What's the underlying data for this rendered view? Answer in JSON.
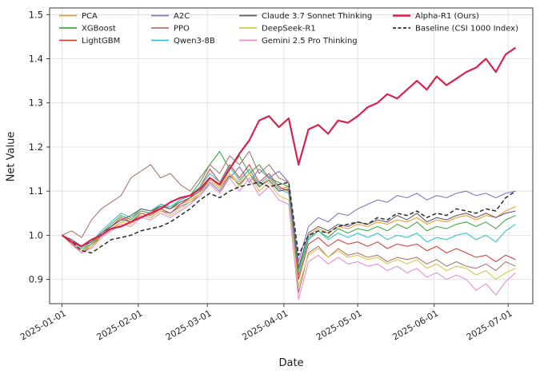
{
  "chart_data": {
    "type": "line",
    "title": "",
    "xlabel": "Date",
    "ylabel": "Net Value",
    "grid": true,
    "legend_position": "upper left",
    "xlim": [
      -5,
      191
    ],
    "ylim": [
      0.845,
      1.515
    ],
    "y_ticks": [
      0.9,
      1.0,
      1.1,
      1.2,
      1.3,
      1.4,
      1.5
    ],
    "x_tick_days": [
      0,
      31,
      59,
      90,
      120,
      151,
      181
    ],
    "x_tick_labels": [
      "2025-01-01",
      "2025-02-01",
      "2025-03-01",
      "2025-04-01",
      "2025-05-01",
      "2025-06-01",
      "2025-07-01"
    ],
    "x_days": [
      0,
      4,
      8,
      12,
      16,
      20,
      24,
      28,
      32,
      36,
      40,
      44,
      48,
      52,
      56,
      60,
      64,
      68,
      72,
      76,
      80,
      84,
      88,
      92,
      96,
      100,
      104,
      108,
      112,
      116,
      120,
      124,
      128,
      132,
      136,
      140,
      144,
      148,
      152,
      156,
      160,
      164,
      168,
      172,
      176,
      180,
      184
    ],
    "series": [
      {
        "name": "PCA",
        "color": "#f2992e",
        "width": 1.1,
        "dash": null,
        "values": [
          1.0,
          0.99,
          0.97,
          0.98,
          1.0,
          1.015,
          1.03,
          1.04,
          1.055,
          1.05,
          1.065,
          1.06,
          1.07,
          1.08,
          1.095,
          1.13,
          1.11,
          1.14,
          1.12,
          1.15,
          1.11,
          1.13,
          1.105,
          1.11,
          0.93,
          1.0,
          1.015,
          1.005,
          1.02,
          1.015,
          1.025,
          1.02,
          1.03,
          1.025,
          1.035,
          1.03,
          1.04,
          1.025,
          1.035,
          1.03,
          1.04,
          1.045,
          1.035,
          1.045,
          1.04,
          1.055,
          1.065
        ]
      },
      {
        "name": "XGBoost",
        "color": "#46a44a",
        "width": 1.1,
        "dash": null,
        "values": [
          1.0,
          0.985,
          0.965,
          0.98,
          1.005,
          1.025,
          1.045,
          1.035,
          1.055,
          1.05,
          1.07,
          1.06,
          1.08,
          1.09,
          1.12,
          1.16,
          1.19,
          1.15,
          1.18,
          1.14,
          1.16,
          1.13,
          1.12,
          1.11,
          0.91,
          0.99,
          1.01,
          0.995,
          1.015,
          1.005,
          1.015,
          1.01,
          1.02,
          1.01,
          1.025,
          1.015,
          1.03,
          1.01,
          1.02,
          1.015,
          1.025,
          1.03,
          1.02,
          1.03,
          1.015,
          1.035,
          1.045
        ]
      },
      {
        "name": "LightGBM",
        "color": "#d0453e",
        "width": 1.1,
        "dash": null,
        "values": [
          1.0,
          0.98,
          0.96,
          0.975,
          1.0,
          1.02,
          1.04,
          1.03,
          1.05,
          1.045,
          1.06,
          1.05,
          1.07,
          1.085,
          1.11,
          1.15,
          1.12,
          1.16,
          1.13,
          1.16,
          1.12,
          1.14,
          1.11,
          1.1,
          0.9,
          0.98,
          0.995,
          0.975,
          0.99,
          0.98,
          0.985,
          0.975,
          0.985,
          0.97,
          0.98,
          0.975,
          0.98,
          0.965,
          0.975,
          0.96,
          0.97,
          0.96,
          0.95,
          0.955,
          0.94,
          0.955,
          0.945
        ]
      },
      {
        "name": "A2C",
        "color": "#8376c6",
        "width": 1.1,
        "dash": null,
        "values": [
          1.0,
          0.99,
          0.975,
          0.985,
          1.005,
          1.02,
          1.035,
          1.03,
          1.045,
          1.04,
          1.055,
          1.05,
          1.065,
          1.075,
          1.09,
          1.12,
          1.1,
          1.13,
          1.155,
          1.12,
          1.15,
          1.13,
          1.145,
          1.12,
          0.94,
          1.02,
          1.04,
          1.03,
          1.05,
          1.045,
          1.06,
          1.07,
          1.08,
          1.075,
          1.09,
          1.085,
          1.095,
          1.08,
          1.09,
          1.085,
          1.095,
          1.1,
          1.09,
          1.095,
          1.085,
          1.095,
          1.1
        ]
      },
      {
        "name": "PPO",
        "color": "#a67a70",
        "width": 1.1,
        "dash": null,
        "values": [
          1.0,
          1.01,
          0.995,
          1.035,
          1.06,
          1.075,
          1.09,
          1.13,
          1.145,
          1.16,
          1.13,
          1.14,
          1.115,
          1.1,
          1.13,
          1.16,
          1.14,
          1.18,
          1.16,
          1.19,
          1.14,
          1.16,
          1.13,
          1.12,
          0.87,
          0.96,
          0.975,
          0.95,
          0.97,
          0.955,
          0.96,
          0.95,
          0.955,
          0.94,
          0.95,
          0.945,
          0.95,
          0.935,
          0.945,
          0.93,
          0.94,
          0.93,
          0.925,
          0.935,
          0.92,
          0.94,
          0.93
        ]
      },
      {
        "name": "Qwen3-8B",
        "color": "#35c2cf",
        "width": 1.1,
        "dash": null,
        "values": [
          1.0,
          0.99,
          0.97,
          0.985,
          1.01,
          1.03,
          1.05,
          1.04,
          1.06,
          1.055,
          1.07,
          1.065,
          1.08,
          1.09,
          1.11,
          1.14,
          1.12,
          1.155,
          1.125,
          1.15,
          1.115,
          1.135,
          1.105,
          1.095,
          0.92,
          0.995,
          1.01,
          0.99,
          1.005,
          0.995,
          1.005,
          0.995,
          1.005,
          0.99,
          1.0,
          0.995,
          1.005,
          0.985,
          0.995,
          0.99,
          1.0,
          1.005,
          0.99,
          1.0,
          0.985,
          1.01,
          1.025
        ]
      },
      {
        "name": "Claude 3.7 Sonnet Thinking",
        "color": "#5f5d70",
        "width": 1.1,
        "dash": null,
        "values": [
          1.0,
          0.99,
          0.975,
          0.985,
          1.005,
          1.02,
          1.035,
          1.045,
          1.06,
          1.055,
          1.065,
          1.06,
          1.075,
          1.085,
          1.1,
          1.125,
          1.105,
          1.135,
          1.115,
          1.14,
          1.11,
          1.125,
          1.1,
          1.105,
          0.925,
          1.005,
          1.02,
          1.01,
          1.025,
          1.02,
          1.03,
          1.025,
          1.035,
          1.03,
          1.045,
          1.035,
          1.05,
          1.03,
          1.04,
          1.035,
          1.045,
          1.05,
          1.04,
          1.05,
          1.04,
          1.05,
          1.055
        ]
      },
      {
        "name": "DeepSeek-R1",
        "color": "#d3c84a",
        "width": 1.1,
        "dash": null,
        "values": [
          1.0,
          0.985,
          0.965,
          0.975,
          0.995,
          1.01,
          1.03,
          1.025,
          1.045,
          1.04,
          1.055,
          1.045,
          1.06,
          1.075,
          1.095,
          1.125,
          1.105,
          1.14,
          1.11,
          1.14,
          1.1,
          1.12,
          1.09,
          1.08,
          0.885,
          0.955,
          0.97,
          0.95,
          0.965,
          0.95,
          0.955,
          0.945,
          0.95,
          0.935,
          0.945,
          0.935,
          0.945,
          0.925,
          0.935,
          0.92,
          0.93,
          0.925,
          0.91,
          0.92,
          0.9,
          0.915,
          0.925
        ]
      },
      {
        "name": "Gemini 2.5 Pro Thinking",
        "color": "#e58fd3",
        "width": 1.1,
        "dash": null,
        "values": [
          1.0,
          0.985,
          0.96,
          0.97,
          0.995,
          1.01,
          1.025,
          1.02,
          1.04,
          1.035,
          1.05,
          1.04,
          1.055,
          1.07,
          1.09,
          1.115,
          1.095,
          1.13,
          1.1,
          1.13,
          1.09,
          1.11,
          1.08,
          1.07,
          0.855,
          0.94,
          0.955,
          0.935,
          0.95,
          0.935,
          0.94,
          0.93,
          0.935,
          0.92,
          0.93,
          0.915,
          0.925,
          0.905,
          0.915,
          0.9,
          0.91,
          0.9,
          0.875,
          0.89,
          0.865,
          0.895,
          0.915
        ]
      },
      {
        "name": "Baseline (CSI 1000 Index)",
        "color": "#2b2b2b",
        "width": 1.5,
        "dash": "5,3",
        "values": [
          1.0,
          0.985,
          0.965,
          0.96,
          0.975,
          0.99,
          0.995,
          1.0,
          1.01,
          1.015,
          1.02,
          1.03,
          1.045,
          1.06,
          1.08,
          1.095,
          1.085,
          1.1,
          1.11,
          1.115,
          1.12,
          1.11,
          1.115,
          1.12,
          0.955,
          1.0,
          1.01,
          1.005,
          1.02,
          1.025,
          1.03,
          1.025,
          1.04,
          1.035,
          1.05,
          1.045,
          1.055,
          1.04,
          1.05,
          1.045,
          1.06,
          1.055,
          1.05,
          1.06,
          1.055,
          1.085,
          1.1
        ]
      },
      {
        "name": "Alpha-R1 (Ours)",
        "color": "#d6224c",
        "width": 2.2,
        "dash": null,
        "values": [
          1.0,
          0.985,
          0.975,
          0.99,
          1.0,
          1.015,
          1.02,
          1.03,
          1.04,
          1.05,
          1.06,
          1.075,
          1.085,
          1.09,
          1.105,
          1.13,
          1.115,
          1.15,
          1.185,
          1.215,
          1.26,
          1.27,
          1.245,
          1.265,
          1.16,
          1.24,
          1.25,
          1.23,
          1.26,
          1.255,
          1.27,
          1.29,
          1.3,
          1.32,
          1.31,
          1.33,
          1.35,
          1.33,
          1.36,
          1.34,
          1.355,
          1.37,
          1.38,
          1.4,
          1.37,
          1.41,
          1.425
        ]
      }
    ],
    "legend_columns": [
      [
        "PCA",
        "XGBoost",
        "LightGBM"
      ],
      [
        "A2C",
        "PPO",
        "Qwen3-8B"
      ],
      [
        "Claude 3.7 Sonnet Thinking",
        "DeepSeek-R1",
        "Gemini 2.5 Pro Thinking"
      ],
      [
        "Alpha-R1 (Ours)",
        "Baseline (CSI 1000 Index)"
      ]
    ]
  }
}
